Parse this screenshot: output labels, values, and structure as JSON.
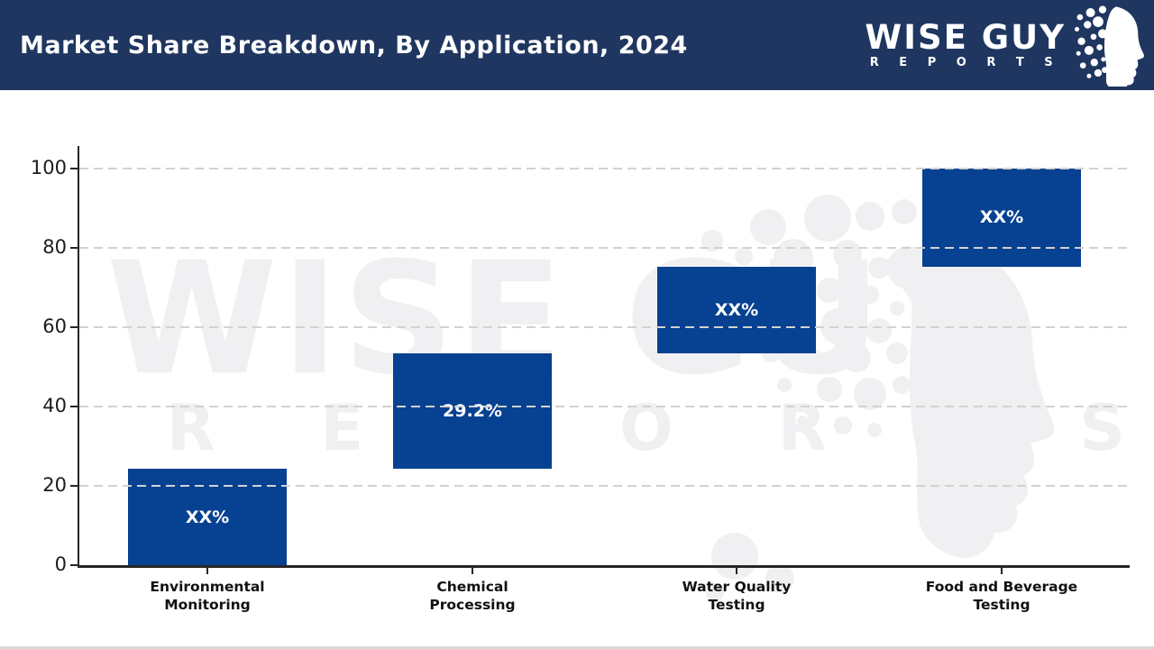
{
  "header": {
    "title": "Market Share Breakdown, By Application, 2024",
    "logo": {
      "brand_line1": "WISE GUY",
      "brand_line2": "R E P O R T S"
    }
  },
  "watermark": {
    "line1": "WISE GUY",
    "line2": "R E P O R T S"
  },
  "colors": {
    "header_bg": "#1f3660",
    "bar": "#074191",
    "bar_label": "#ffffff",
    "grid": "#d2d2d2",
    "axis": "#262626",
    "tick_text": "#1c1c1c",
    "category_text": "#111111",
    "watermark": "#f0f0f2",
    "page_border": "#d9d9d9"
  },
  "chart_data": {
    "type": "bar",
    "subtype": "waterfall",
    "title": "Market Share Breakdown, By Application, 2024",
    "xlabel": "",
    "ylabel": "",
    "ylim": [
      0,
      105
    ],
    "y_ticks": [
      0,
      20,
      40,
      60,
      80,
      100
    ],
    "grid": "horizontal dashed, drawn above bars",
    "legend": "none",
    "categories": [
      "Environmental Monitoring",
      "Chemical Processing",
      "Water Quality Testing",
      "Food and Beverage Testing"
    ],
    "category_lines": [
      [
        "Environmental",
        "Monitoring"
      ],
      [
        "Chemical",
        "Processing"
      ],
      [
        "Water Quality",
        "Testing"
      ],
      [
        "Food and Beverage",
        "Testing"
      ]
    ],
    "segments": [
      {
        "category": "Environmental Monitoring",
        "start": 0,
        "end": 24.3,
        "height": 24.3,
        "data_label": "XX%"
      },
      {
        "category": "Chemical Processing",
        "start": 24.3,
        "end": 53.5,
        "height": 29.2,
        "data_label": "29.2%"
      },
      {
        "category": "Water Quality Testing",
        "start": 53.5,
        "end": 75.3,
        "height": 21.8,
        "data_label": "XX%"
      },
      {
        "category": "Food and Beverage Testing",
        "start": 75.3,
        "end": 100,
        "height": 24.7,
        "data_label": "XX%"
      }
    ]
  }
}
